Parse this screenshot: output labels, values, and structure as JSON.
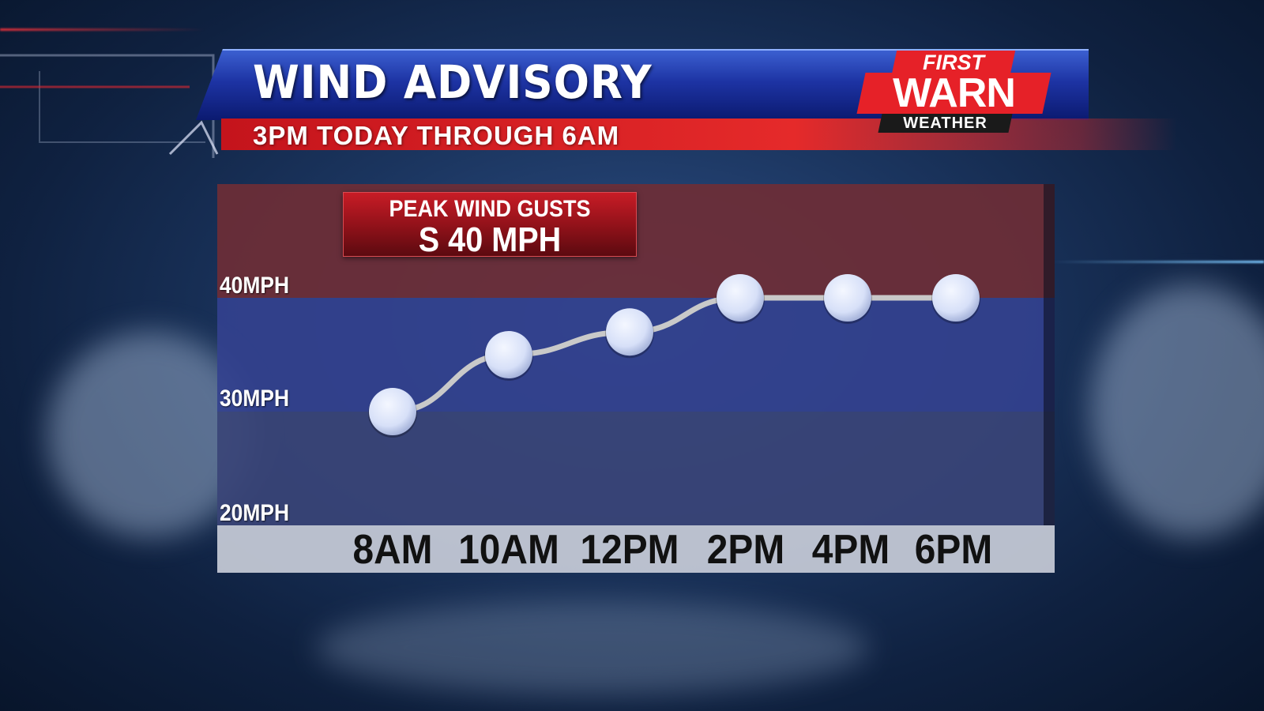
{
  "header": {
    "title": "WIND ADVISORY",
    "subtitle": "3PM TODAY THROUGH 6AM"
  },
  "logo": {
    "line1": "FIRST",
    "line2": "WARN",
    "line3": "WEATHER"
  },
  "peak": {
    "label": "PEAK WIND GUSTS",
    "value": "S 40 MPH"
  },
  "colors": {
    "banner_blue": "#1d33a3",
    "subbar_red": "#e52a2a",
    "band_high": "#6e2e36",
    "band_mid": "#33418e",
    "band_low": "#3a4477",
    "axis_strip": "#c8ccd8",
    "marker": "#d7e0f8",
    "line": "#c9c9c9"
  },
  "chart_data": {
    "type": "line",
    "title": "PEAK WIND GUSTS",
    "categories": [
      "8AM",
      "10AM",
      "12PM",
      "2PM",
      "4PM",
      "6PM"
    ],
    "series": [
      {
        "values": [
          30,
          35,
          37,
          40,
          40,
          40
        ]
      }
    ],
    "y_ticks": [
      "20MPH",
      "30MPH",
      "40MPH"
    ],
    "ylim": [
      20,
      50
    ],
    "bands": [
      {
        "from": 40,
        "to": 50,
        "color": "#6e2e36"
      },
      {
        "from": 30,
        "to": 40,
        "color": "#33418e"
      },
      {
        "from": 20,
        "to": 30,
        "color": "#3a4477"
      }
    ],
    "grid": false,
    "legend": "none"
  }
}
